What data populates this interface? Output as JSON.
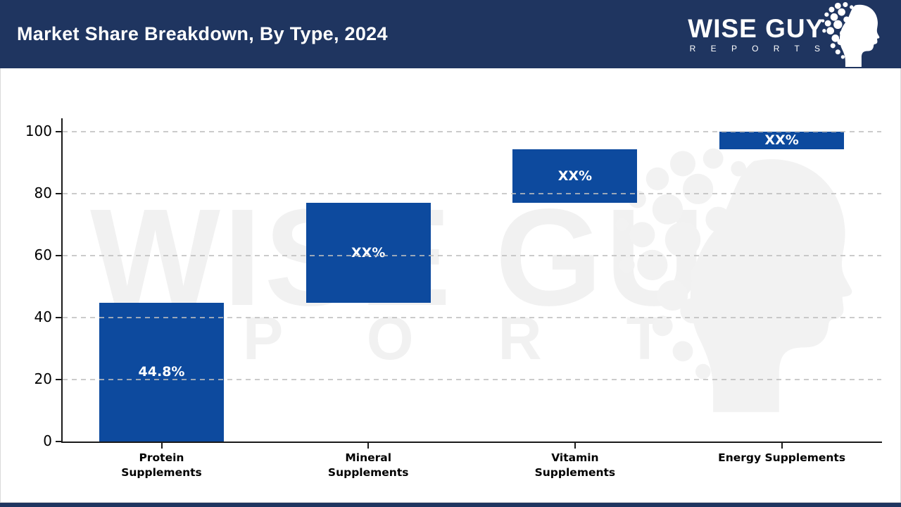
{
  "header": {
    "title": "Market Share Breakdown, By Type, 2024",
    "logo": {
      "line1": "WISE GUY",
      "line2": "R E P O R T S"
    }
  },
  "watermark": {
    "line1": "WISE GUY",
    "line2": "P O R T S"
  },
  "colors": {
    "header_bg": "#1f3560",
    "footer_bg": "#1f3560",
    "bar": "#0d4a9e",
    "watermark": "#f1f1f1",
    "axis": "#1a1a1a"
  },
  "chart_data": {
    "type": "bar",
    "subtype": "waterfall",
    "title": "Market Share Breakdown, By Type, 2024",
    "categories": [
      [
        "Protein",
        "Supplements"
      ],
      [
        "Mineral",
        "Supplements"
      ],
      [
        "Vitamin",
        "Supplements"
      ],
      [
        "Energy Supplements"
      ]
    ],
    "segments": [
      {
        "category": "Protein Supplements",
        "start": 0,
        "end": 44.8,
        "label": "44.8%"
      },
      {
        "category": "Mineral Supplements",
        "start": 44.8,
        "end": 77.1,
        "label": "XX%"
      },
      {
        "category": "Vitamin Supplements",
        "start": 77.1,
        "end": 94.4,
        "label": "XX%"
      },
      {
        "category": "Energy Supplements",
        "start": 94.4,
        "end": 100,
        "label": "XX%"
      }
    ],
    "yticks": [
      0,
      20,
      40,
      60,
      80,
      100
    ],
    "ylim": [
      0,
      104
    ],
    "xlabel": "",
    "ylabel": "",
    "grid": "horizontal-dashed",
    "legend": "none",
    "bar_color": "#0d4a9e"
  }
}
